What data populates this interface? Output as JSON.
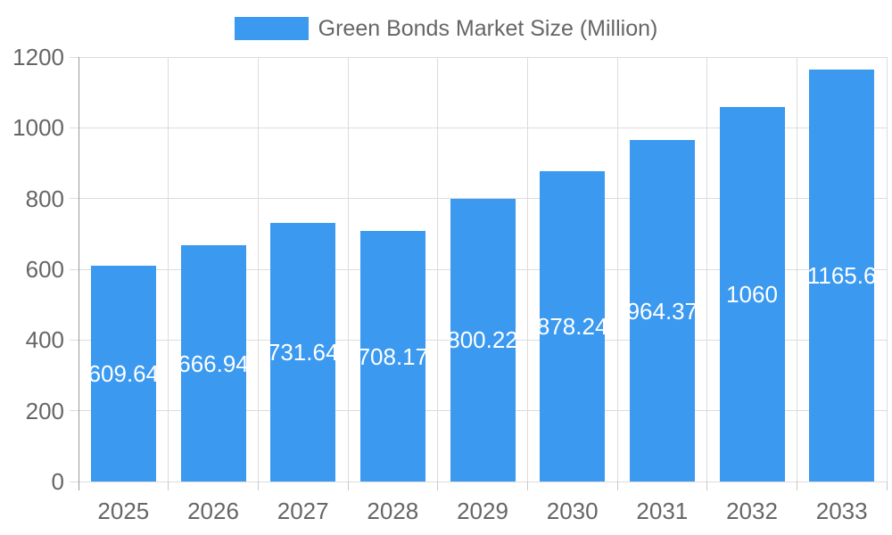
{
  "legend": {
    "label": "Green Bonds Market Size (Million)"
  },
  "chart_data": {
    "type": "bar",
    "title": "Green Bonds Market Size (Million)",
    "xlabel": "",
    "ylabel": "",
    "categories": [
      "2025",
      "2026",
      "2027",
      "2028",
      "2029",
      "2030",
      "2031",
      "2032",
      "2033"
    ],
    "series": [
      {
        "name": "Green Bonds Market Size (Million)",
        "values": [
          609.64,
          666.94,
          731.64,
          708.17,
          800.22,
          878.24,
          964.37,
          1060,
          1165.6
        ]
      }
    ],
    "value_labels": [
      "609.64",
      "666.94",
      "731.64",
      "708.17",
      "800.22",
      "878.24",
      "964.37",
      "1060",
      "1165.6"
    ],
    "ylim": [
      0,
      1200
    ],
    "yticks": [
      0,
      200,
      400,
      600,
      800,
      1000,
      1200
    ],
    "grid": true,
    "legend_position": "top",
    "value_label_position": "inside-center",
    "colors": {
      "bar": "#3B99F0",
      "axis_text": "#666666",
      "grid_line": "#DCDCDC",
      "tick_line": "#C8C8C8",
      "y_axis_line": "#999999",
      "value_label_text": "#FFFFFF",
      "background": "#FFFFFF"
    }
  }
}
